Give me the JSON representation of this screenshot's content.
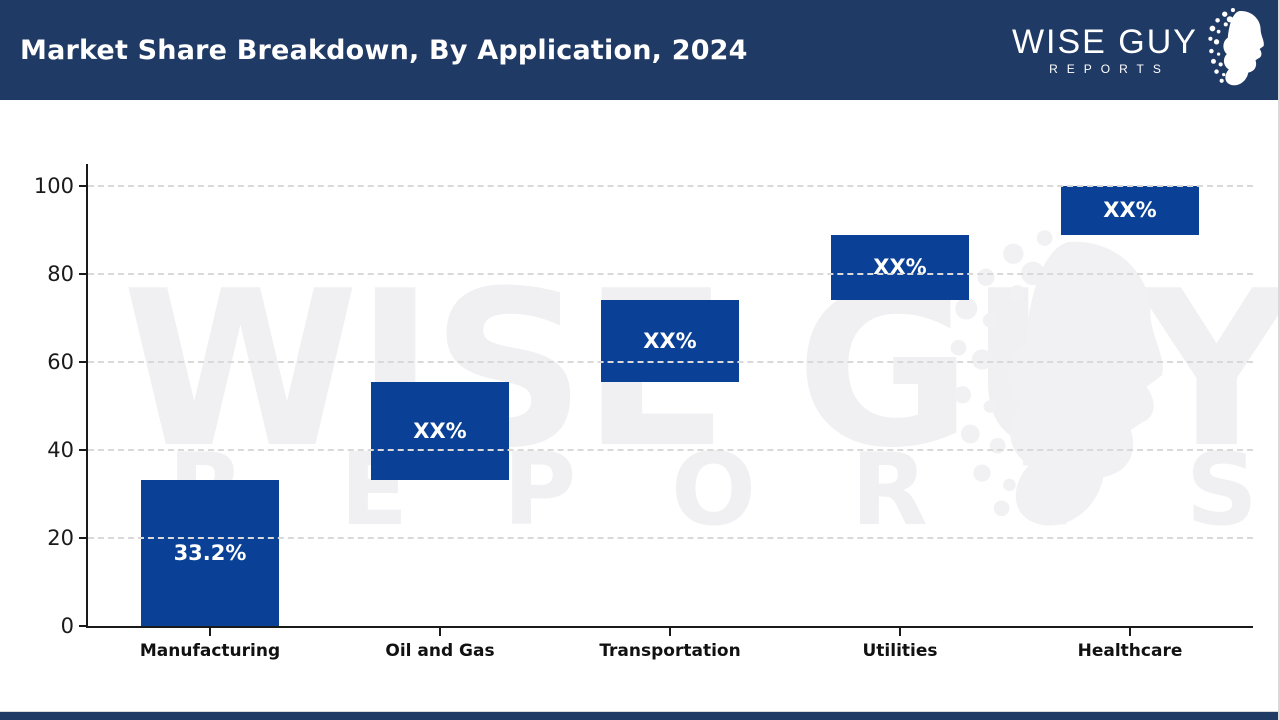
{
  "header": {
    "title": "Market Share Breakdown, By Application, 2024",
    "logo": {
      "line1": "WISE GUY",
      "line2": "REPORTS",
      "icon": "dotted-head-profile"
    }
  },
  "watermark": {
    "line1": "WISE GUY",
    "line2": "R E P O R T S",
    "icon": "dotted-head-profile-watermark"
  },
  "colors": {
    "header_bg": "#203a66",
    "footer_bg": "#203a66",
    "bar": "#0a4196",
    "bar_label": "#ffffff",
    "gridline": "#d9d9d9",
    "axis": "#1a1a1a",
    "watermark": "#f0f0f2"
  },
  "chart_data": {
    "type": "bar",
    "subtype": "waterfall",
    "title": "Market Share Breakdown, By Application, 2024",
    "xlabel": "",
    "ylabel": "",
    "categories": [
      "Manufacturing",
      "Oil and Gas",
      "Transportation",
      "Utilities",
      "Healthcare"
    ],
    "bars": [
      {
        "category": "Manufacturing",
        "start": 0,
        "end": 33.2,
        "value": 33.2,
        "label": "33.2%"
      },
      {
        "category": "Oil and Gas",
        "start": 33.2,
        "end": 55.4,
        "value": 22.2,
        "label": "XX%"
      },
      {
        "category": "Transportation",
        "start": 55.4,
        "end": 74.1,
        "value": 18.7,
        "label": "XX%"
      },
      {
        "category": "Utilities",
        "start": 74.1,
        "end": 88.9,
        "value": 14.8,
        "label": "XX%"
      },
      {
        "category": "Healthcare",
        "start": 88.9,
        "end": 100,
        "value": 11.1,
        "label": "XX%"
      }
    ],
    "y_ticks": [
      0,
      20,
      40,
      60,
      80,
      100
    ],
    "ylim": [
      0,
      105
    ],
    "grid": "horizontal-dashed",
    "legend": "none"
  }
}
